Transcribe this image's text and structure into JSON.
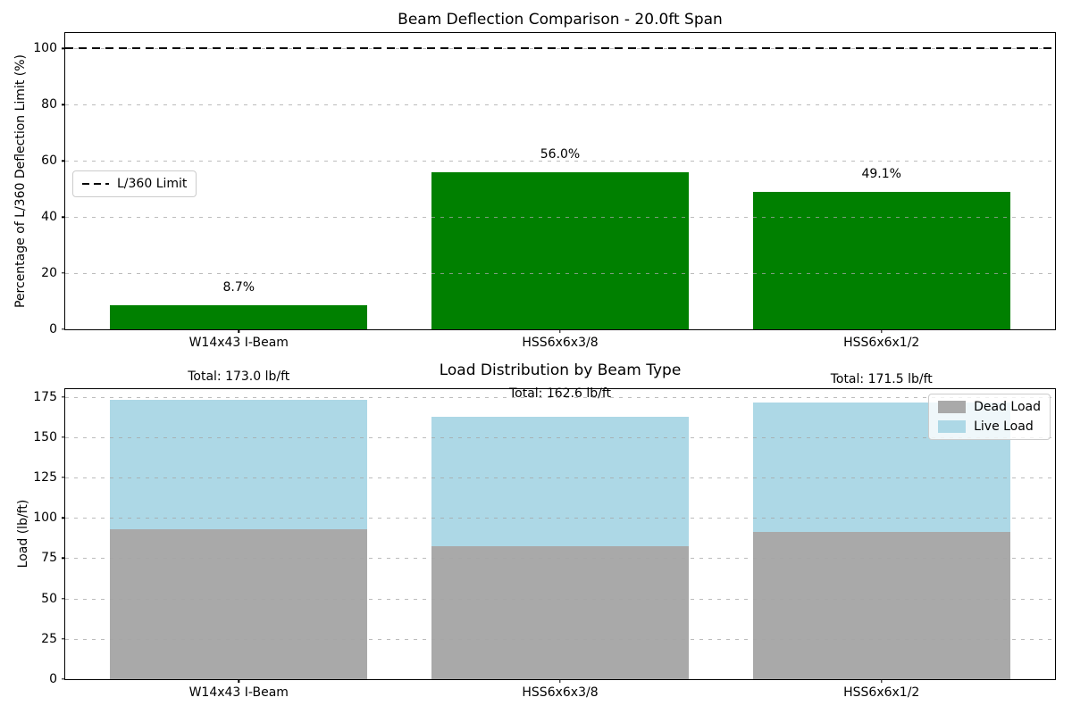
{
  "chart_data": [
    {
      "type": "bar",
      "title": "Beam Deflection Comparison - 20.0ft Span",
      "categories": [
        "W14x43 I-Beam",
        "HSS6x6x3/8",
        "HSS6x6x1/2"
      ],
      "values": [
        8.7,
        56.0,
        49.1
      ],
      "bar_labels": [
        "8.7%",
        "56.0%",
        "49.1%"
      ],
      "bar_color": "#008000",
      "xlabel": "",
      "ylabel": "Percentage of L/360 Deflection Limit (%)",
      "ylim": [
        0,
        105.5
      ],
      "yticks": [
        0,
        20,
        40,
        60,
        80,
        100
      ],
      "grid": "horizontal-dashed",
      "reference_line": {
        "value": 100,
        "color": "#000000",
        "style": "dashed"
      },
      "legend": {
        "position": "center-left",
        "entries": [
          {
            "label": "L/360 Limit",
            "marker": "dashed-line",
            "color": "#000000"
          }
        ]
      }
    },
    {
      "type": "stacked-bar",
      "title": "Load Distribution by Beam Type",
      "categories": [
        "W14x43 I-Beam",
        "HSS6x6x3/8",
        "HSS6x6x1/2"
      ],
      "series": [
        {
          "name": "Dead Load",
          "color": "#a9a9a9",
          "values": [
            93.0,
            82.6,
            91.5
          ]
        },
        {
          "name": "Live Load",
          "color": "#add8e6",
          "values": [
            80.0,
            80.0,
            80.0
          ]
        }
      ],
      "totals": [
        173.0,
        162.6,
        171.5
      ],
      "total_labels": [
        "Total: 173.0 lb/ft",
        "Total: 162.6 lb/ft",
        "Total: 171.5 lb/ft"
      ],
      "xlabel": "",
      "ylabel": "Load (lb/ft)",
      "ylim": [
        0,
        179.7
      ],
      "yticks": [
        0,
        25,
        50,
        75,
        100,
        125,
        150,
        175
      ],
      "grid": "horizontal-dashed",
      "legend": {
        "position": "upper-right",
        "entries": [
          {
            "label": "Dead Load",
            "color": "#a9a9a9"
          },
          {
            "label": "Live Load",
            "color": "#add8e6"
          }
        ]
      }
    }
  ]
}
